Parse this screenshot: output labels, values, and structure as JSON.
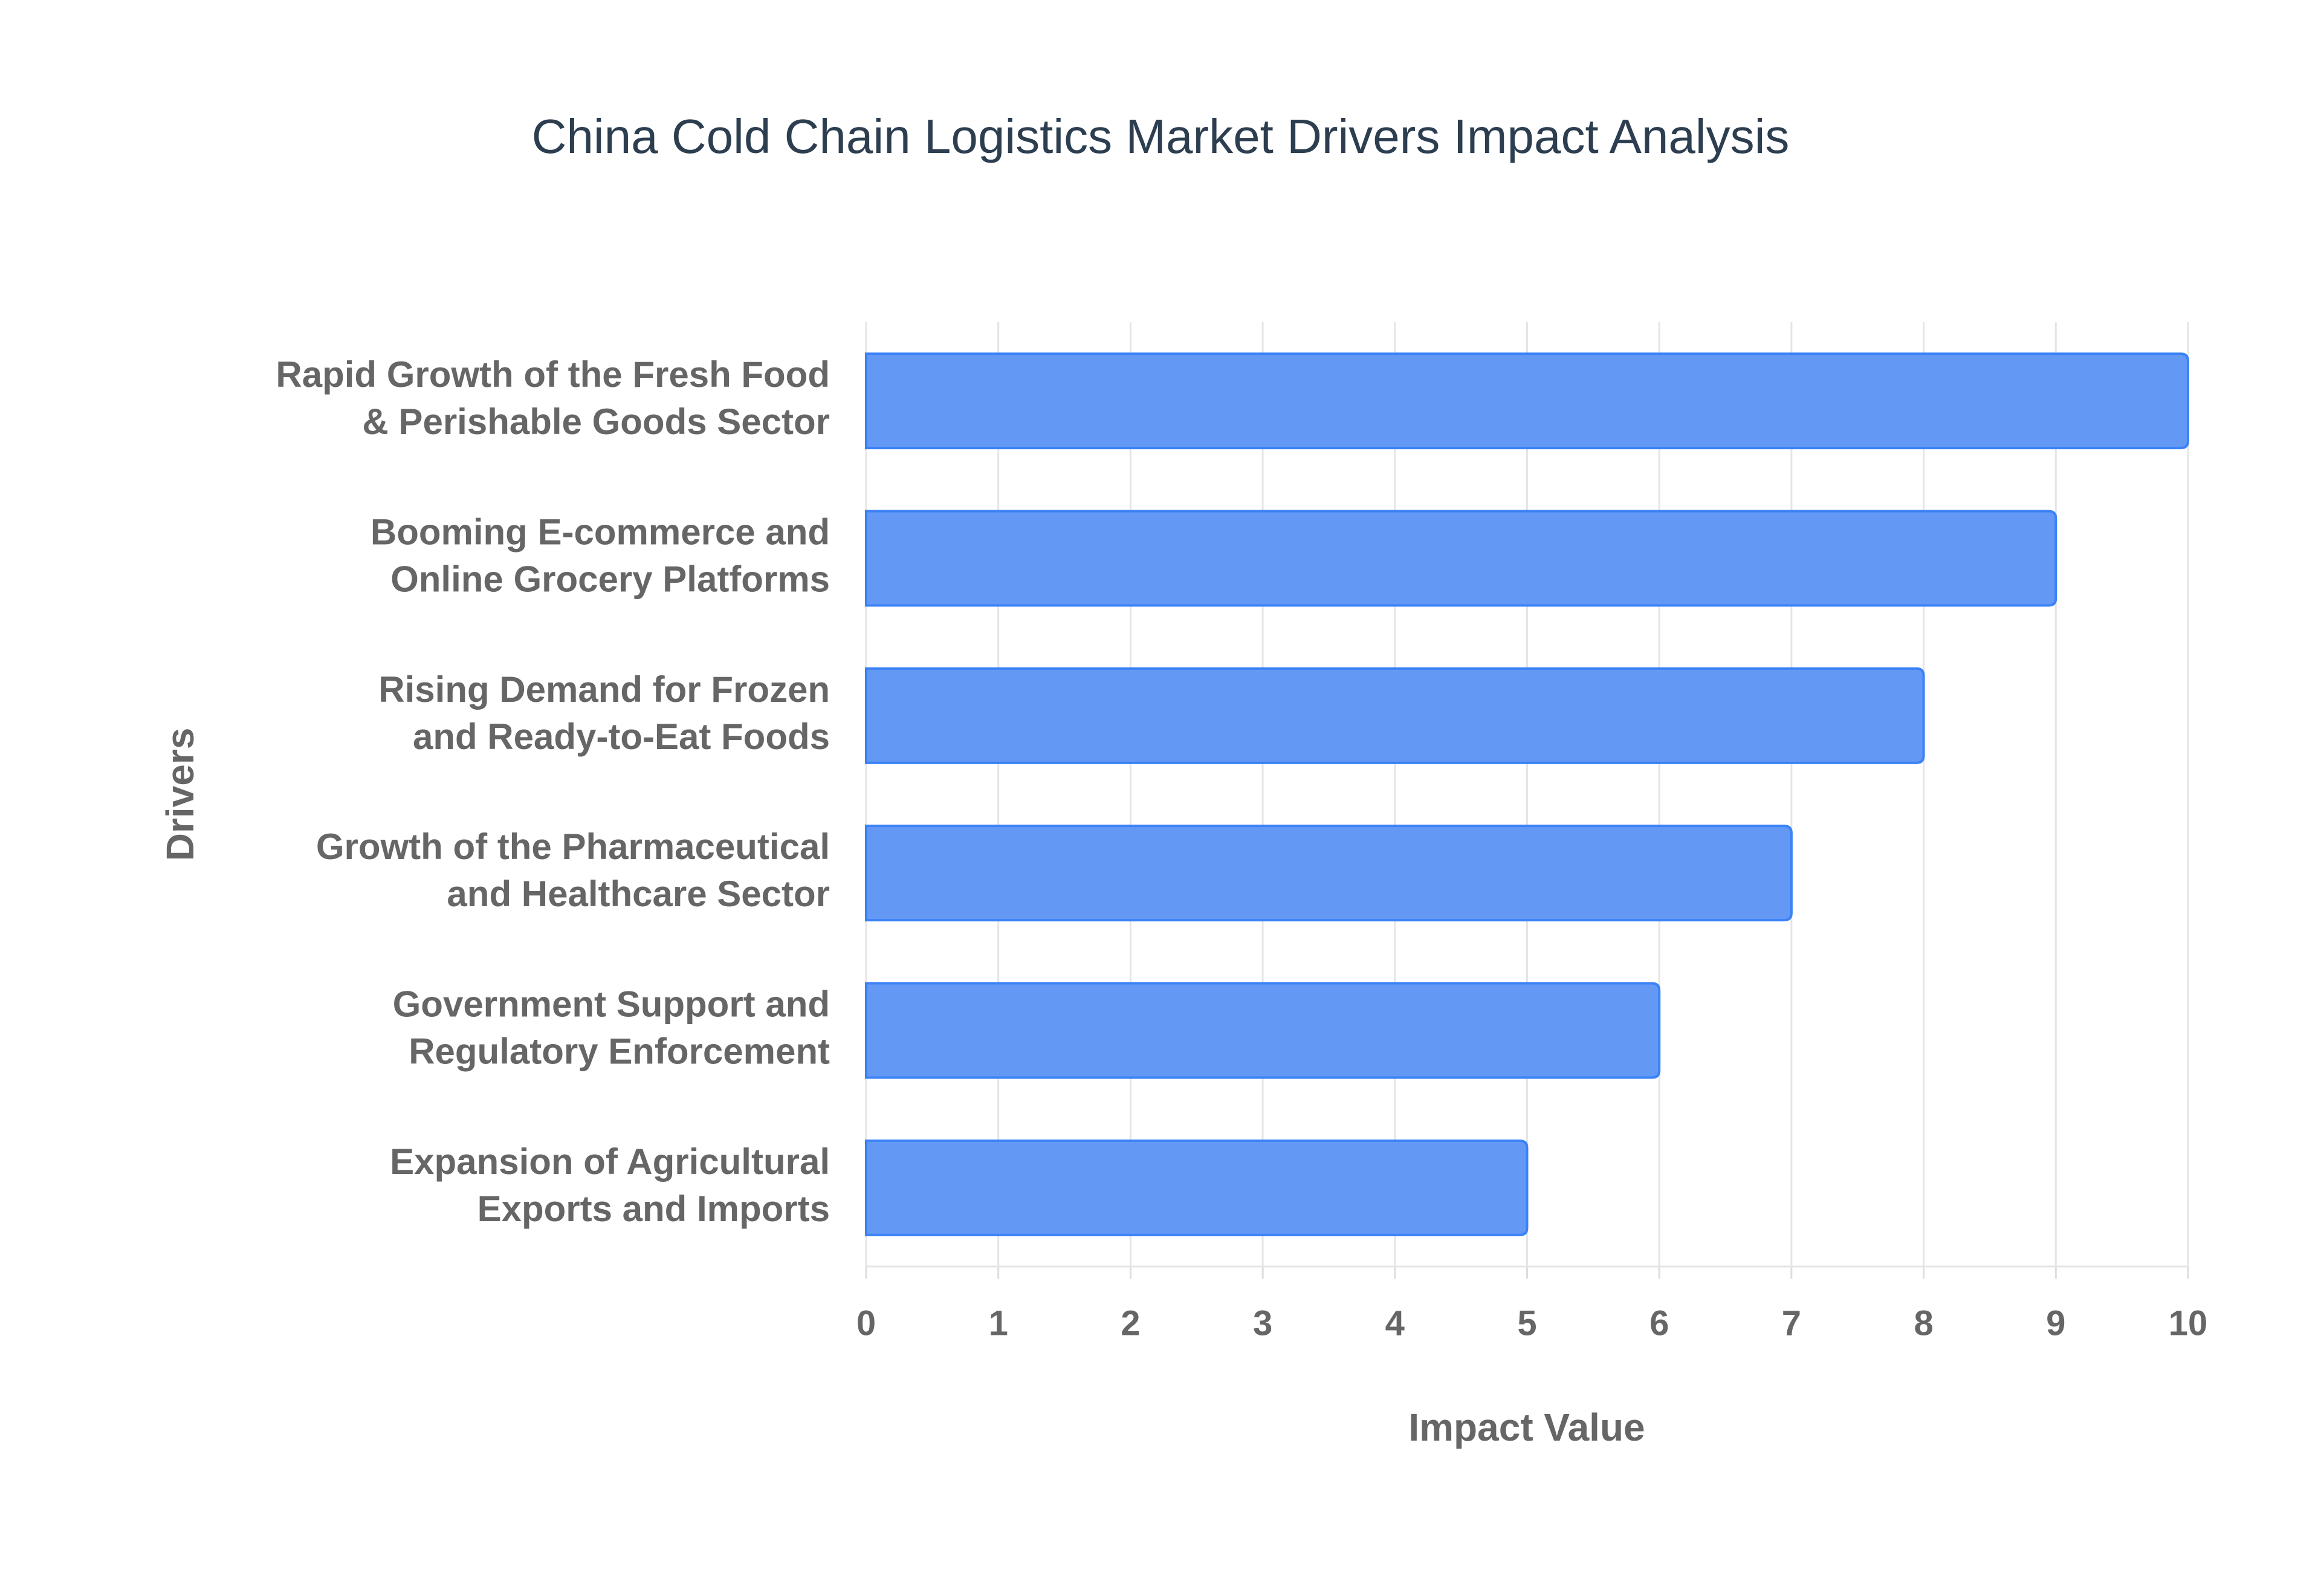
{
  "chart_data": {
    "type": "bar",
    "orientation": "horizontal",
    "title": "China Cold Chain Logistics Market Drivers Impact Analysis",
    "x_label": "Impact Value",
    "y_label": "Drivers",
    "categories": [
      "Rapid Growth of the Fresh Food & Perishable Goods Sector",
      "Booming E-commerce and Online Grocery Platforms",
      "Rising Demand for Frozen and Ready-to-Eat Foods",
      "Growth of the Pharmaceutical and Healthcare Sector",
      "Government Support and Regulatory Enforcement",
      "Expansion of Agricultural Exports and Imports"
    ],
    "values": [
      10,
      9,
      8,
      7,
      6,
      5
    ],
    "color": "#6399f5",
    "border_color": "#3b82f6",
    "xlim": [
      0,
      10
    ],
    "xticks": [
      0,
      1,
      2,
      3,
      4,
      5,
      6,
      7,
      8,
      9,
      10
    ],
    "grid": true
  }
}
